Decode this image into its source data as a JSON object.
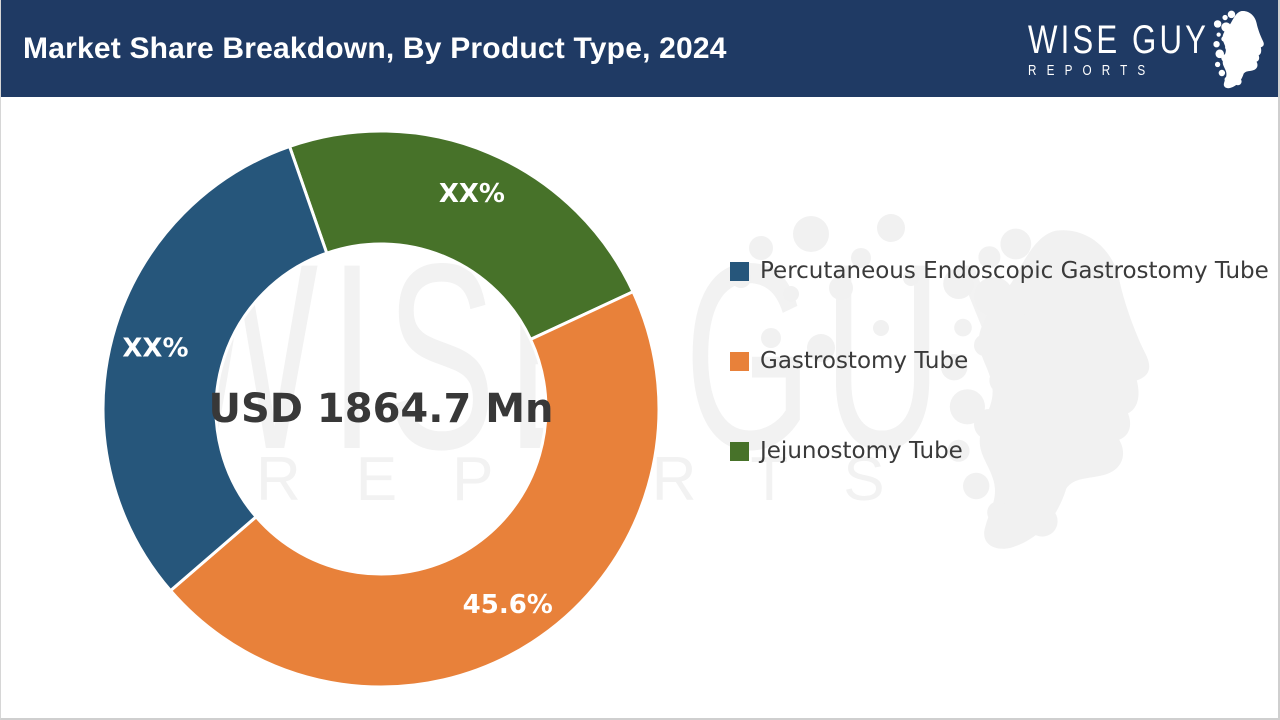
{
  "header": {
    "title": "Market Share Breakdown, By Product Type, 2024",
    "logo": {
      "brand_top": "WISE GUY",
      "brand_bottom": "REPORTS"
    }
  },
  "chart_data": {
    "type": "pie",
    "donut": true,
    "title": "Market Share Breakdown, By Product Type, 2024",
    "center_label": "USD 1864.7 Mn",
    "start_angle_deg": -19.2,
    "legend_position": "right",
    "segments": [
      {
        "name": "Jejunostomy Tube",
        "label": "XX%",
        "value_pct": 23.4,
        "color": "#477229"
      },
      {
        "name": "Gastrostomy Tube",
        "label": "45.6%",
        "value_pct": 45.6,
        "color": "#E8813A"
      },
      {
        "name": "Percutaneous Endoscopic Gastrostomy Tube",
        "label": "XX%",
        "value_pct": 31.0,
        "color": "#26567B"
      }
    ]
  },
  "legend": {
    "items": [
      {
        "label": "Percutaneous Endoscopic Gastrostomy Tube",
        "color": "#26567B"
      },
      {
        "label": "Gastrostomy Tube",
        "color": "#E8813A"
      },
      {
        "label": "Jejunostomy Tube",
        "color": "#477229"
      }
    ]
  },
  "watermark": {
    "line1": "WISE GUY",
    "line2": "REPORTS"
  },
  "colors": {
    "header_bg": "#1F3A64",
    "text_dark": "#3A3A3A",
    "watermark": "#F1F1F1",
    "page_border": "#CFCFCF"
  }
}
